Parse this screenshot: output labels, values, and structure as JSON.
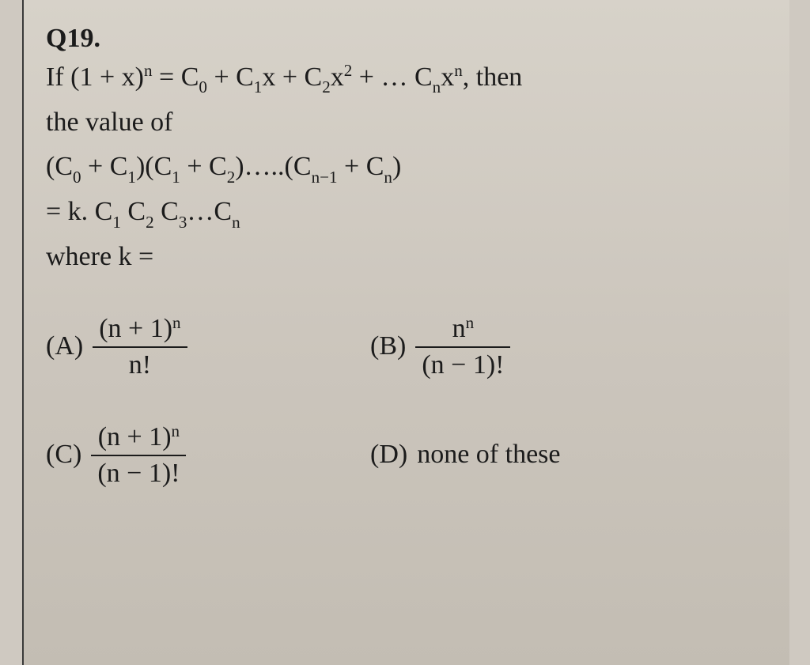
{
  "colors": {
    "background_top": "#d7d2c9",
    "background_mid": "#ccc6bd",
    "background_bot": "#c3bdb3",
    "text": "#1b1b1b",
    "margin_rule": "#3a3a3a"
  },
  "typography": {
    "font_family": "Times New Roman",
    "body_fontsize_pt": 26,
    "label_fontsize_pt": 26,
    "label_weight": "bold"
  },
  "question": {
    "label": "Q19.",
    "line1_prefix": "If ",
    "line1_expr": "(1 + x)ⁿ = C₀ + C₁x + C₂x² + … Cₙxⁿ",
    "line1_suffix": ", then",
    "line2": "the value of",
    "line3": "(C₀ + C₁)(C₁ + C₂)…..(Cₙ₋₁ + Cₙ)",
    "line4": "= k. C₁ C₂ C₃ … Cₙ",
    "line5": "where k ="
  },
  "options": {
    "A": {
      "label": "(A)",
      "numerator": "(n + 1)ⁿ",
      "denominator": "n!"
    },
    "B": {
      "label": "(B)",
      "numerator": "nⁿ",
      "denominator": "(n − 1)!"
    },
    "C": {
      "label": "(C)",
      "numerator": "(n + 1)ⁿ",
      "denominator": "(n − 1)!"
    },
    "D": {
      "label": "(D)",
      "text": "none of these"
    }
  }
}
